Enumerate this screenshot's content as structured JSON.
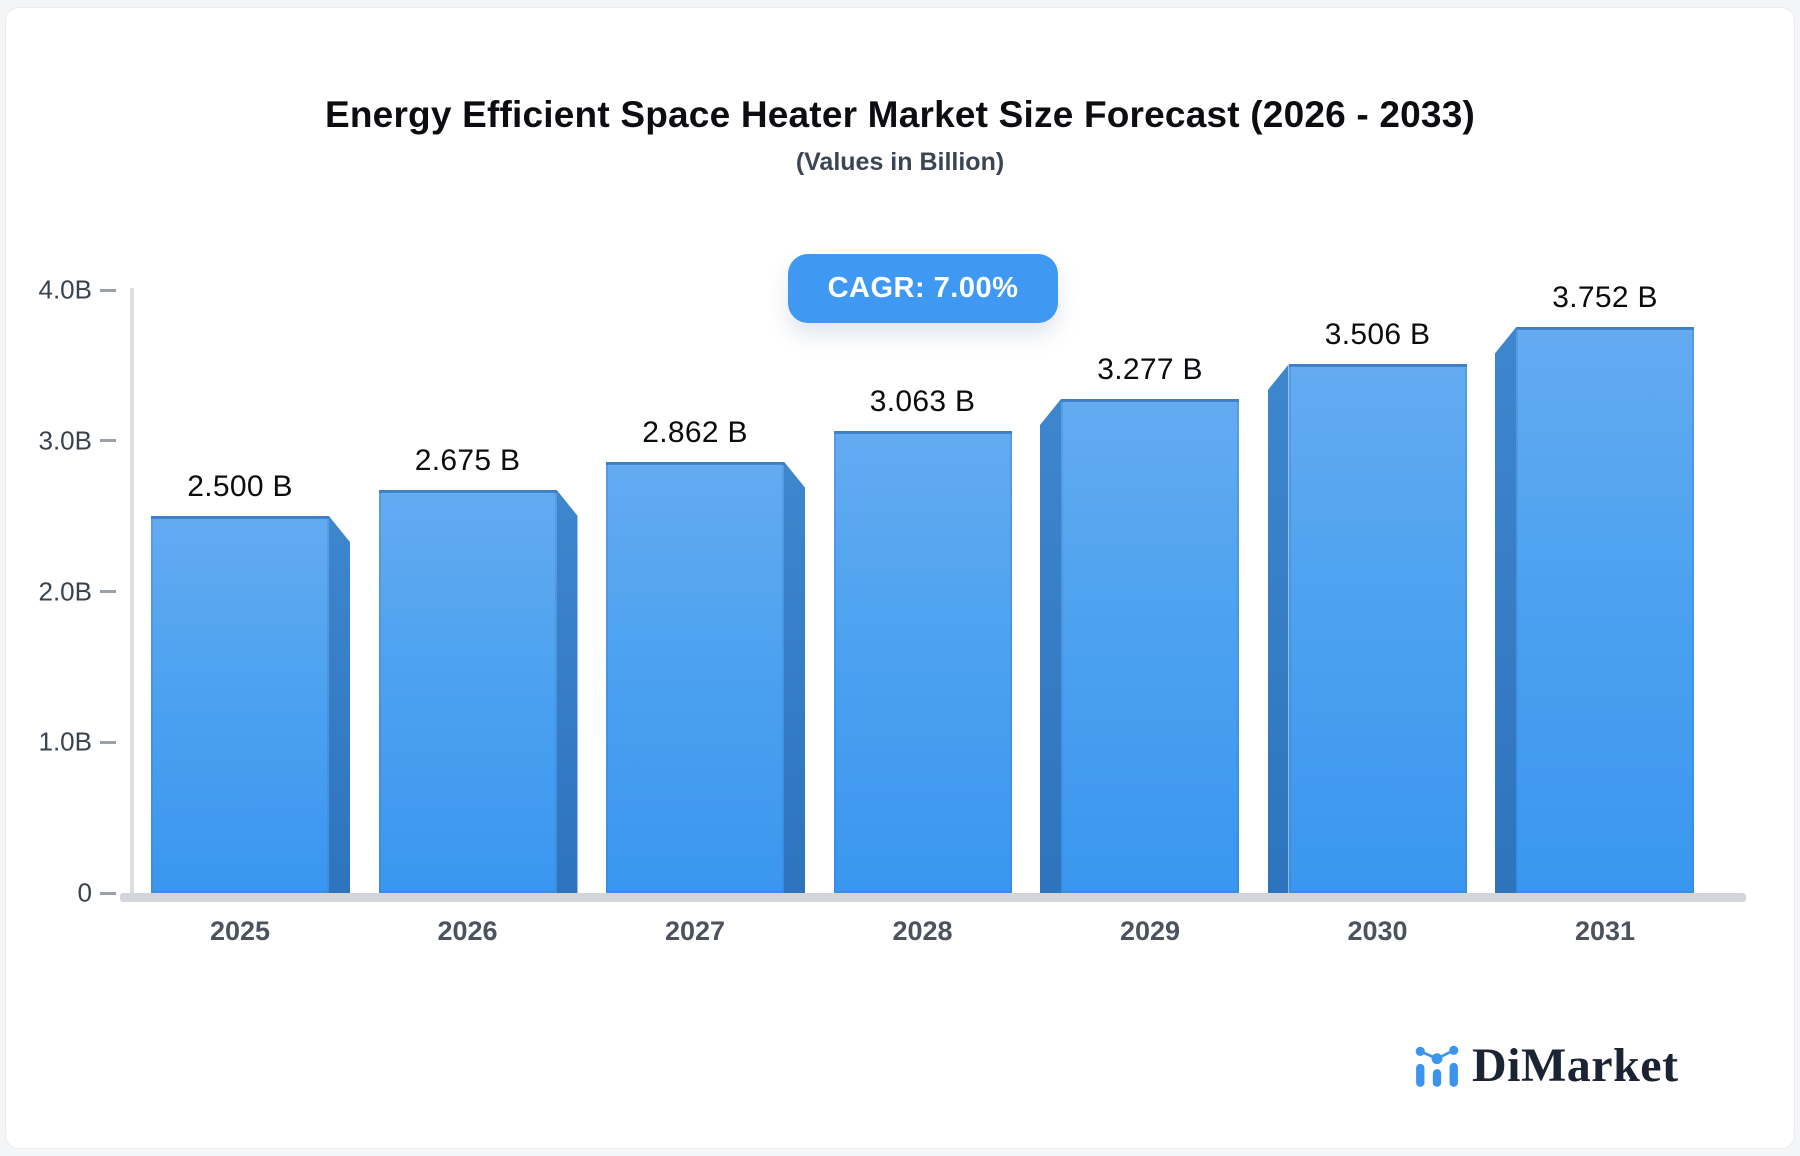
{
  "page": {
    "background": "#f3f5f7",
    "card_background": "#ffffff"
  },
  "chart_data": {
    "type": "bar",
    "title": "Energy Efficient Space Heater Market Size Forecast (2026 - 2033)",
    "subtitle": "(Values in Billion)",
    "badge_label": "CAGR: 7.00%",
    "categories": [
      "2025",
      "2026",
      "2027",
      "2028",
      "2029",
      "2030",
      "2031"
    ],
    "values": [
      2.5,
      2.675,
      2.862,
      3.063,
      3.277,
      3.506,
      3.752
    ],
    "bar_labels": [
      "2.500 B",
      "2.675 B",
      "2.862 B",
      "3.063 B",
      "3.277 B",
      "3.506 B",
      "3.752 B"
    ],
    "y_ticks": [
      {
        "value": 4,
        "label": "4.0B"
      },
      {
        "value": 3,
        "label": "3.0B"
      },
      {
        "value": 2,
        "label": "2.0B"
      },
      {
        "value": 1,
        "label": "1.0B"
      },
      {
        "value": 0,
        "label": "0"
      }
    ],
    "ylim": [
      0,
      4
    ],
    "xlabel": "",
    "ylabel": "",
    "grid": "off",
    "legend_position": "none",
    "colors": {
      "bar_face_top": "#64abf1",
      "bar_face_bottom": "#3a96ef",
      "bar_side_3d": "#2f7ac3",
      "badge_background": "#3f99f3",
      "badge_text": "#ffffff",
      "axis_line": "#dcdee2",
      "baseline": "#d2d5d9",
      "tick_mark": "#9aa1aa",
      "value_label_text": "#0a0c0f"
    }
  },
  "branding": {
    "logo_text": "DiMarket",
    "logo_icon": "combo-chart-icon",
    "logo_icon_color": "#3d94ee",
    "logo_text_color": "#1b2433"
  }
}
